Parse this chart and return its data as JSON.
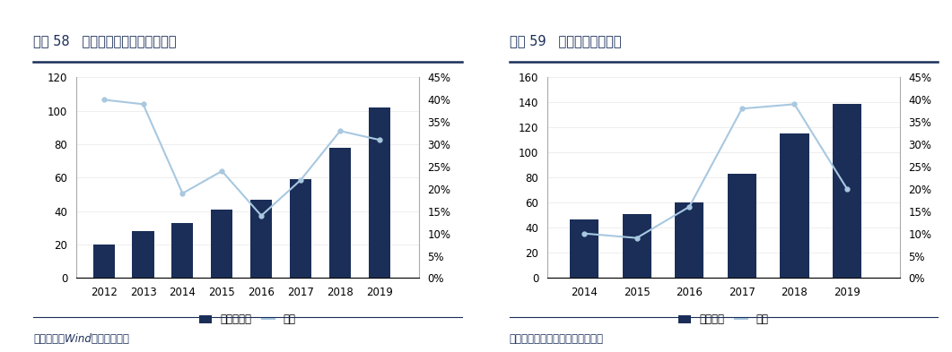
{
  "chart1": {
    "title": "图表 58   三亚海棠湾免税销售额增速",
    "years": [
      2012,
      2013,
      2014,
      2015,
      2016,
      2017,
      2018,
      2019
    ],
    "bar_values": [
      20,
      28,
      33,
      41,
      47,
      59,
      78,
      102
    ],
    "line_values": [
      0.4,
      0.39,
      0.19,
      0.24,
      0.14,
      0.22,
      0.33,
      0.31
    ],
    "bar_label": "三亚海棠湾",
    "line_label": "同比",
    "ylim_left": [
      0,
      120
    ],
    "ylim_right": [
      0,
      0.45
    ],
    "yticks_left": [
      0,
      20,
      40,
      60,
      80,
      100,
      120
    ],
    "yticks_right": [
      0,
      0.05,
      0.1,
      0.15,
      0.2,
      0.25,
      0.3,
      0.35,
      0.4,
      0.45
    ],
    "source": "资料来源：Wind，华创证券。"
  },
  "chart2": {
    "title": "图表 59   上海机场免税业务",
    "years": [
      2014,
      2015,
      2016,
      2017,
      2018,
      2019
    ],
    "bar_values": [
      47,
      51,
      60,
      83,
      115,
      139
    ],
    "line_values": [
      0.1,
      0.09,
      0.16,
      0.38,
      0.39,
      0.2
    ],
    "bar_label": "日上浦东",
    "line_label": "增速",
    "ylim_left": [
      0,
      160
    ],
    "ylim_right": [
      0,
      0.45
    ],
    "yticks_left": [
      0,
      20,
      40,
      60,
      80,
      100,
      120,
      140,
      160
    ],
    "yticks_right": [
      0,
      0.05,
      0.1,
      0.15,
      0.2,
      0.25,
      0.3,
      0.35,
      0.4,
      0.45
    ],
    "source": "资料来源：公司公告，华创证券。"
  },
  "bar_color": "#1a2e58",
  "line_color": "#a8c8e0",
  "title_color": "#1a2e58",
  "source_color": "#1a2e58",
  "background_color": "#ffffff",
  "title_fontsize": 10.5,
  "tick_fontsize": 8.5,
  "legend_fontsize": 8.5,
  "source_fontsize": 8.5
}
